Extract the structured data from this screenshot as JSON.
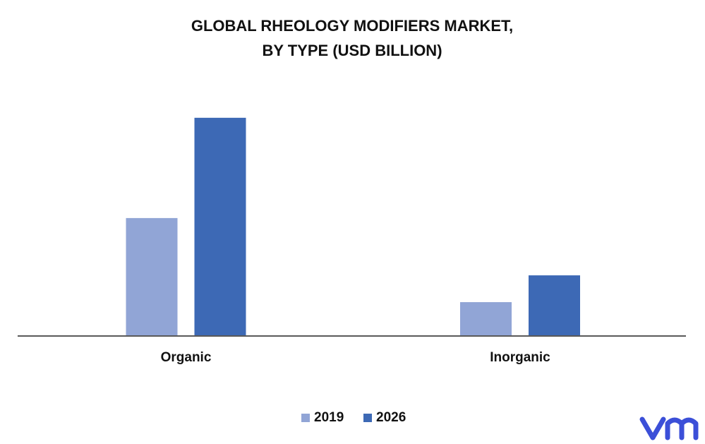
{
  "chart_data": {
    "type": "bar",
    "title": [
      "GLOBAL RHEOLOGY MODIFIERS MARKET,",
      "BY TYPE (USD BILLION)"
    ],
    "categories": [
      "Organic",
      "Inorganic"
    ],
    "series": [
      {
        "name": "2019",
        "color": "#91a5d6",
        "values": [
          4.42,
          1.25
        ]
      },
      {
        "name": "2026",
        "color": "#3d69b5",
        "values": [
          8.2,
          2.26
        ]
      }
    ],
    "ylim": [
      0,
      9.5
    ],
    "legend": "bottom"
  }
}
